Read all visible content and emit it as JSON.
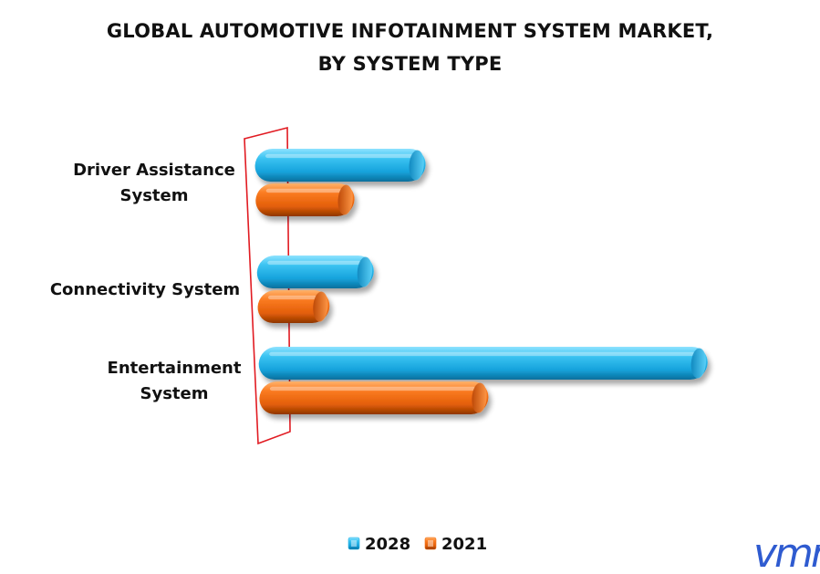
{
  "title": {
    "line1": "GLOBAL AUTOMOTIVE INFOTAINMENT SYSTEM MARKET,",
    "line2": "BY SYSTEM TYPE"
  },
  "chart_data": {
    "type": "bar",
    "orientation": "horizontal",
    "style": "3d-cylinder",
    "categories": [
      [
        "Driver Assistance",
        "System"
      ],
      [
        "Connectivity System"
      ],
      [
        "Entertainment",
        "System"
      ]
    ],
    "series": [
      {
        "name": "2028",
        "color": "#1fb0e6",
        "values": [
          38,
          26,
          100
        ]
      },
      {
        "name": "2021",
        "color": "#f26b0f",
        "values": [
          22,
          16,
          51
        ]
      }
    ],
    "xlim": [
      0,
      100
    ],
    "axis_color": "#e11b22",
    "legend": "bottom-center",
    "grid": false
  },
  "logo": {
    "text": "vmr",
    "color": "#2f5bd0"
  }
}
